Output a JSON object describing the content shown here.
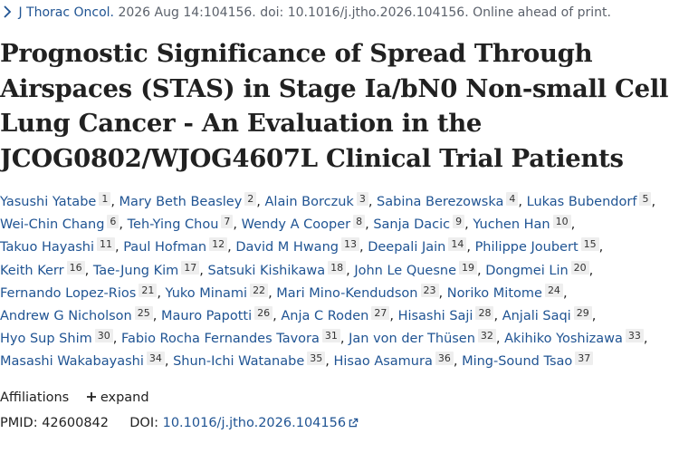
{
  "citation": {
    "journal": "J Thorac Oncol.",
    "details": " 2026 Aug 14:104156. doi: 10.1016/j.jtho.2026.104156. Online ahead of print."
  },
  "title": "Prognostic Significance of Spread Through Airspaces (STAS) in Stage Ia/bN0 Non-small Cell Lung Cancer - An Evaluation in the JCOG0802/WJOG4607L Clinical Trial Patients",
  "authors": [
    {
      "name": "Yasushi Yatabe",
      "aff": "1"
    },
    {
      "name": "Mary Beth Beasley",
      "aff": "2"
    },
    {
      "name": "Alain Borczuk",
      "aff": "3"
    },
    {
      "name": "Sabina Berezowska",
      "aff": "4"
    },
    {
      "name": "Lukas Bubendorf",
      "aff": "5"
    },
    {
      "name": "Wei-Chin Chang",
      "aff": "6"
    },
    {
      "name": "Teh-Ying Chou",
      "aff": "7"
    },
    {
      "name": "Wendy A Cooper",
      "aff": "8"
    },
    {
      "name": "Sanja Dacic",
      "aff": "9"
    },
    {
      "name": "Yuchen Han",
      "aff": "10"
    },
    {
      "name": "Takuo Hayashi",
      "aff": "11"
    },
    {
      "name": "Paul Hofman",
      "aff": "12"
    },
    {
      "name": "David M Hwang",
      "aff": "13"
    },
    {
      "name": "Deepali Jain",
      "aff": "14"
    },
    {
      "name": "Philippe Joubert",
      "aff": "15"
    },
    {
      "name": "Keith Kerr",
      "aff": "16"
    },
    {
      "name": "Tae-Jung Kim",
      "aff": "17"
    },
    {
      "name": "Satsuki Kishikawa",
      "aff": "18"
    },
    {
      "name": "John Le Quesne",
      "aff": "19"
    },
    {
      "name": "Dongmei Lin",
      "aff": "20"
    },
    {
      "name": "Fernando Lopez-Rios",
      "aff": "21"
    },
    {
      "name": "Yuko Minami",
      "aff": "22"
    },
    {
      "name": "Mari Mino-Kendudson",
      "aff": "23"
    },
    {
      "name": "Noriko Mitome",
      "aff": "24"
    },
    {
      "name": "Andrew G Nicholson",
      "aff": "25"
    },
    {
      "name": "Mauro Papotti",
      "aff": "26"
    },
    {
      "name": "Anja C Roden",
      "aff": "27"
    },
    {
      "name": "Hisashi Saji",
      "aff": "28"
    },
    {
      "name": "Anjali Saqi",
      "aff": "29"
    },
    {
      "name": "Hyo Sup Shim",
      "aff": "30"
    },
    {
      "name": "Fabio Rocha Fernandes Tavora",
      "aff": "31"
    },
    {
      "name": "Jan von der Thüsen",
      "aff": "32"
    },
    {
      "name": "Akihiko Yoshizawa",
      "aff": "33"
    },
    {
      "name": "Masashi Wakabayashi",
      "aff": "34"
    },
    {
      "name": "Shun-Ichi Watanabe",
      "aff": "35"
    },
    {
      "name": "Hisao Asamura",
      "aff": "36"
    },
    {
      "name": "Ming-Sound Tsao",
      "aff": "37"
    }
  ],
  "affiliations": {
    "label": "Affiliations",
    "expand_label": "expand"
  },
  "ids": {
    "pmid_label": "PMID:",
    "pmid": "42600842",
    "doi_label": "DOI:",
    "doi": "10.1016/j.jtho.2026.104156"
  },
  "colors": {
    "link": "#205493",
    "muted": "#5b616b",
    "badge_bg": "#eeeeee"
  },
  "icons": {
    "chevron": "chevron-right-icon",
    "plus": "plus-icon",
    "external": "external-link-icon"
  }
}
